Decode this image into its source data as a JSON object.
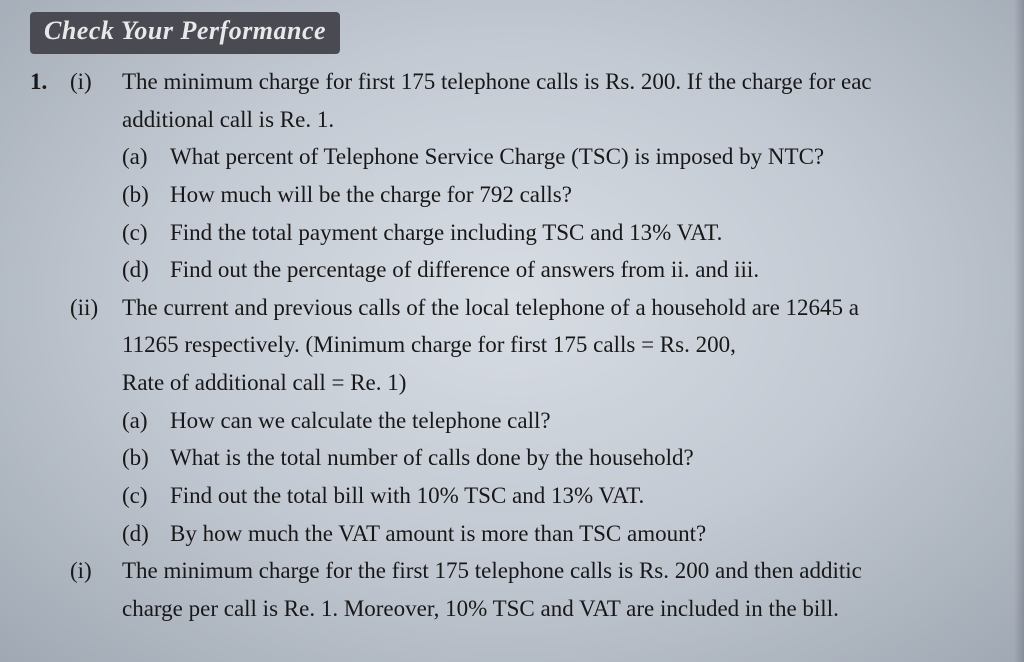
{
  "header": {
    "title": "Check Your Performance"
  },
  "q1": {
    "num": "1.",
    "marker": "(i)",
    "text": "The minimum charge for first 175 telephone calls is Rs. 200. If the charge for eac",
    "text2": "additional call is Re. 1.",
    "subs": [
      {
        "m": "(a)",
        "t": "What percent of Telephone Service Charge (TSC) is imposed by NTC?"
      },
      {
        "m": "(b)",
        "t": "How much will be the charge for 792 calls?"
      },
      {
        "m": "(c)",
        "t": "Find the total payment charge including TSC and 13% VAT."
      },
      {
        "m": "(d)",
        "t": "Find out the percentage of difference of answers from ii. and iii."
      }
    ]
  },
  "q2": {
    "marker": "(ii)",
    "text": "The current and previous calls of the local telephone of a household are 12645 a",
    "text2": "11265 respectively. (Minimum charge for first 175 calls = Rs. 200,",
    "text3": "Rate of additional call = Re. 1)",
    "subs": [
      {
        "m": "(a)",
        "t": "How can we calculate the telephone call?"
      },
      {
        "m": "(b)",
        "t": "What is the total number of calls done by the household?"
      },
      {
        "m": "(c)",
        "t": "Find out the total bill with 10% TSC and 13% VAT."
      },
      {
        "m": "(d)",
        "t": "By how much the VAT amount is more than TSC amount?"
      }
    ]
  },
  "q3": {
    "marker": "(i)",
    "text": "The minimum charge for the first 175 telephone calls is Rs. 200 and then additic",
    "text2": "charge per call is Re. 1. Moreover, 10% TSC and VAT are included in the bill."
  }
}
